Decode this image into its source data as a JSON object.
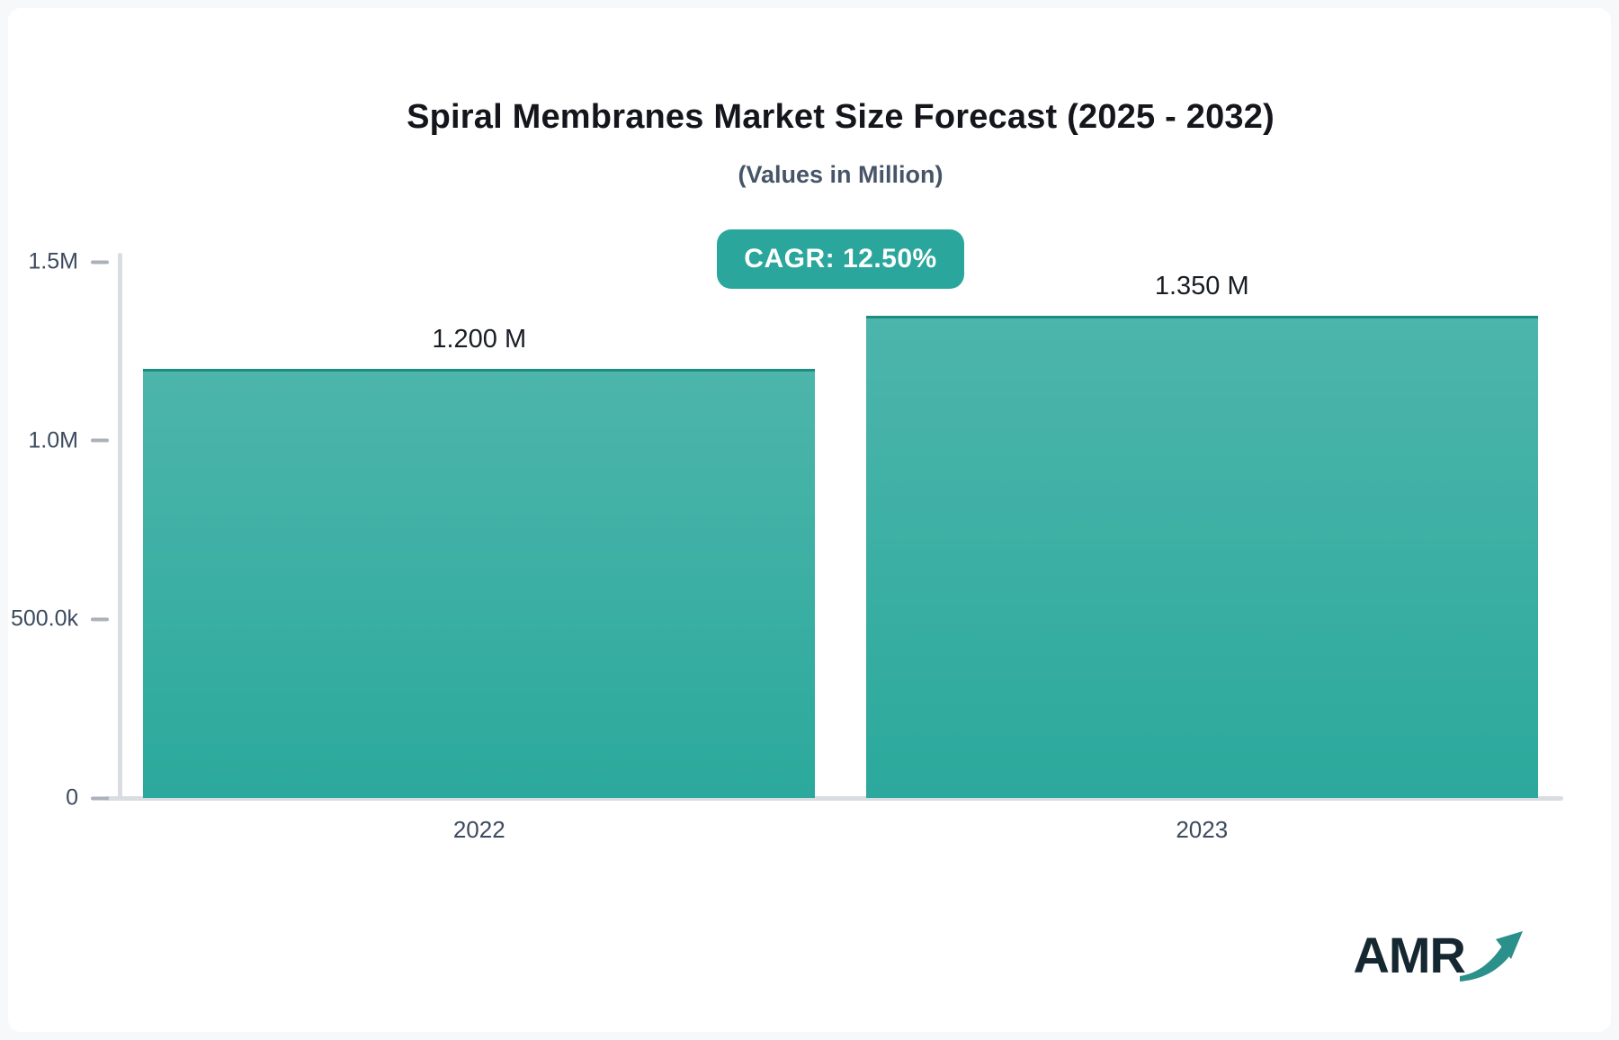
{
  "header": {
    "title": "Spiral Membranes Market Size Forecast (2025 - 2032)",
    "subtitle": "(Values in Million)",
    "cagr_badge": "CAGR: 12.50%"
  },
  "chart_data": {
    "type": "bar",
    "title": "Spiral Membranes Market Size Forecast (2025 - 2032)",
    "subtitle": "(Values in Million)",
    "annotation": "CAGR: 12.50%",
    "categories": [
      "2022",
      "2023"
    ],
    "values": [
      1200000,
      1350000
    ],
    "value_labels": [
      "1.200 M",
      "1.350 M"
    ],
    "unit": "Million",
    "xlabel": "",
    "ylabel": "",
    "ylim": [
      0,
      1500000
    ],
    "yticks": [
      {
        "value": 0,
        "label": "0"
      },
      {
        "value": 500000,
        "label": "500.0k"
      },
      {
        "value": 1000000,
        "label": "1.0M"
      },
      {
        "value": 1500000,
        "label": "1.5M"
      }
    ],
    "grid": false,
    "legend": "none",
    "bar_band_fill_ratio": 0.93
  },
  "colors": {
    "accent": "#2aa69c",
    "bar_gradient_top": "#4db5ab",
    "bar_gradient_bottom": "#2ba99c",
    "bar_top_stroke": "#1f8c82",
    "axis_line": "#d9dde2",
    "tick_text": "#3d4b5f",
    "title_text": "#15161c",
    "subtitle_text": "#475569",
    "logo_text": "#152731",
    "logo_arrow": "#2b8f8a"
  },
  "logo": {
    "text": "AMR",
    "arrow_icon": "trend-up-arrow-icon"
  }
}
